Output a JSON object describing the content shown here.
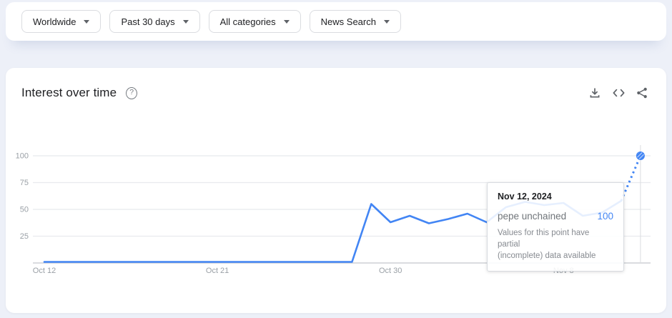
{
  "filters": {
    "items": [
      {
        "label": "Worldwide"
      },
      {
        "label": "Past 30 days"
      },
      {
        "label": "All categories"
      },
      {
        "label": "News Search"
      }
    ]
  },
  "panel": {
    "title": "Interest over time",
    "help_glyph": "?"
  },
  "tooltip": {
    "date": "Nov 12, 2024",
    "term": "pepe unchained",
    "value": "100",
    "note_line1": "Values for this point have partial",
    "note_line2": "(incomplete) data available"
  },
  "chart_data": {
    "type": "line",
    "title": "Interest over time",
    "x": [
      "Oct 12",
      "Oct 13",
      "Oct 14",
      "Oct 15",
      "Oct 16",
      "Oct 17",
      "Oct 18",
      "Oct 19",
      "Oct 20",
      "Oct 21",
      "Oct 22",
      "Oct 23",
      "Oct 24",
      "Oct 25",
      "Oct 26",
      "Oct 27",
      "Oct 28",
      "Oct 29",
      "Oct 30",
      "Oct 31",
      "Nov 1",
      "Nov 2",
      "Nov 3",
      "Nov 4",
      "Nov 5",
      "Nov 6",
      "Nov 7",
      "Nov 8",
      "Nov 9",
      "Nov 10",
      "Nov 11",
      "Nov 12"
    ],
    "series": [
      {
        "name": "pepe unchained",
        "values": [
          1,
          1,
          1,
          1,
          1,
          1,
          1,
          1,
          1,
          1,
          1,
          1,
          1,
          1,
          1,
          1,
          1,
          55,
          38,
          44,
          37,
          41,
          46,
          38,
          52,
          57,
          54,
          56,
          44,
          47,
          58,
          100
        ]
      }
    ],
    "ylim": [
      0,
      100
    ],
    "yticks": [
      25,
      50,
      75,
      100
    ],
    "xtick_labels": [
      "Oct 12",
      "Oct 21",
      "Oct 30",
      "Nov 8"
    ],
    "xtick_positions": [
      0,
      9,
      18,
      27
    ],
    "grid": "horizontal",
    "legend": "none",
    "last_point_partial": true,
    "hovered_point_index": 31,
    "colors": {
      "line": "#4285f4",
      "grid": "#e8eaed",
      "axis": "#c3c7cc",
      "tick_text": "#9aa0a6",
      "hover_line": "#dadce0"
    }
  }
}
